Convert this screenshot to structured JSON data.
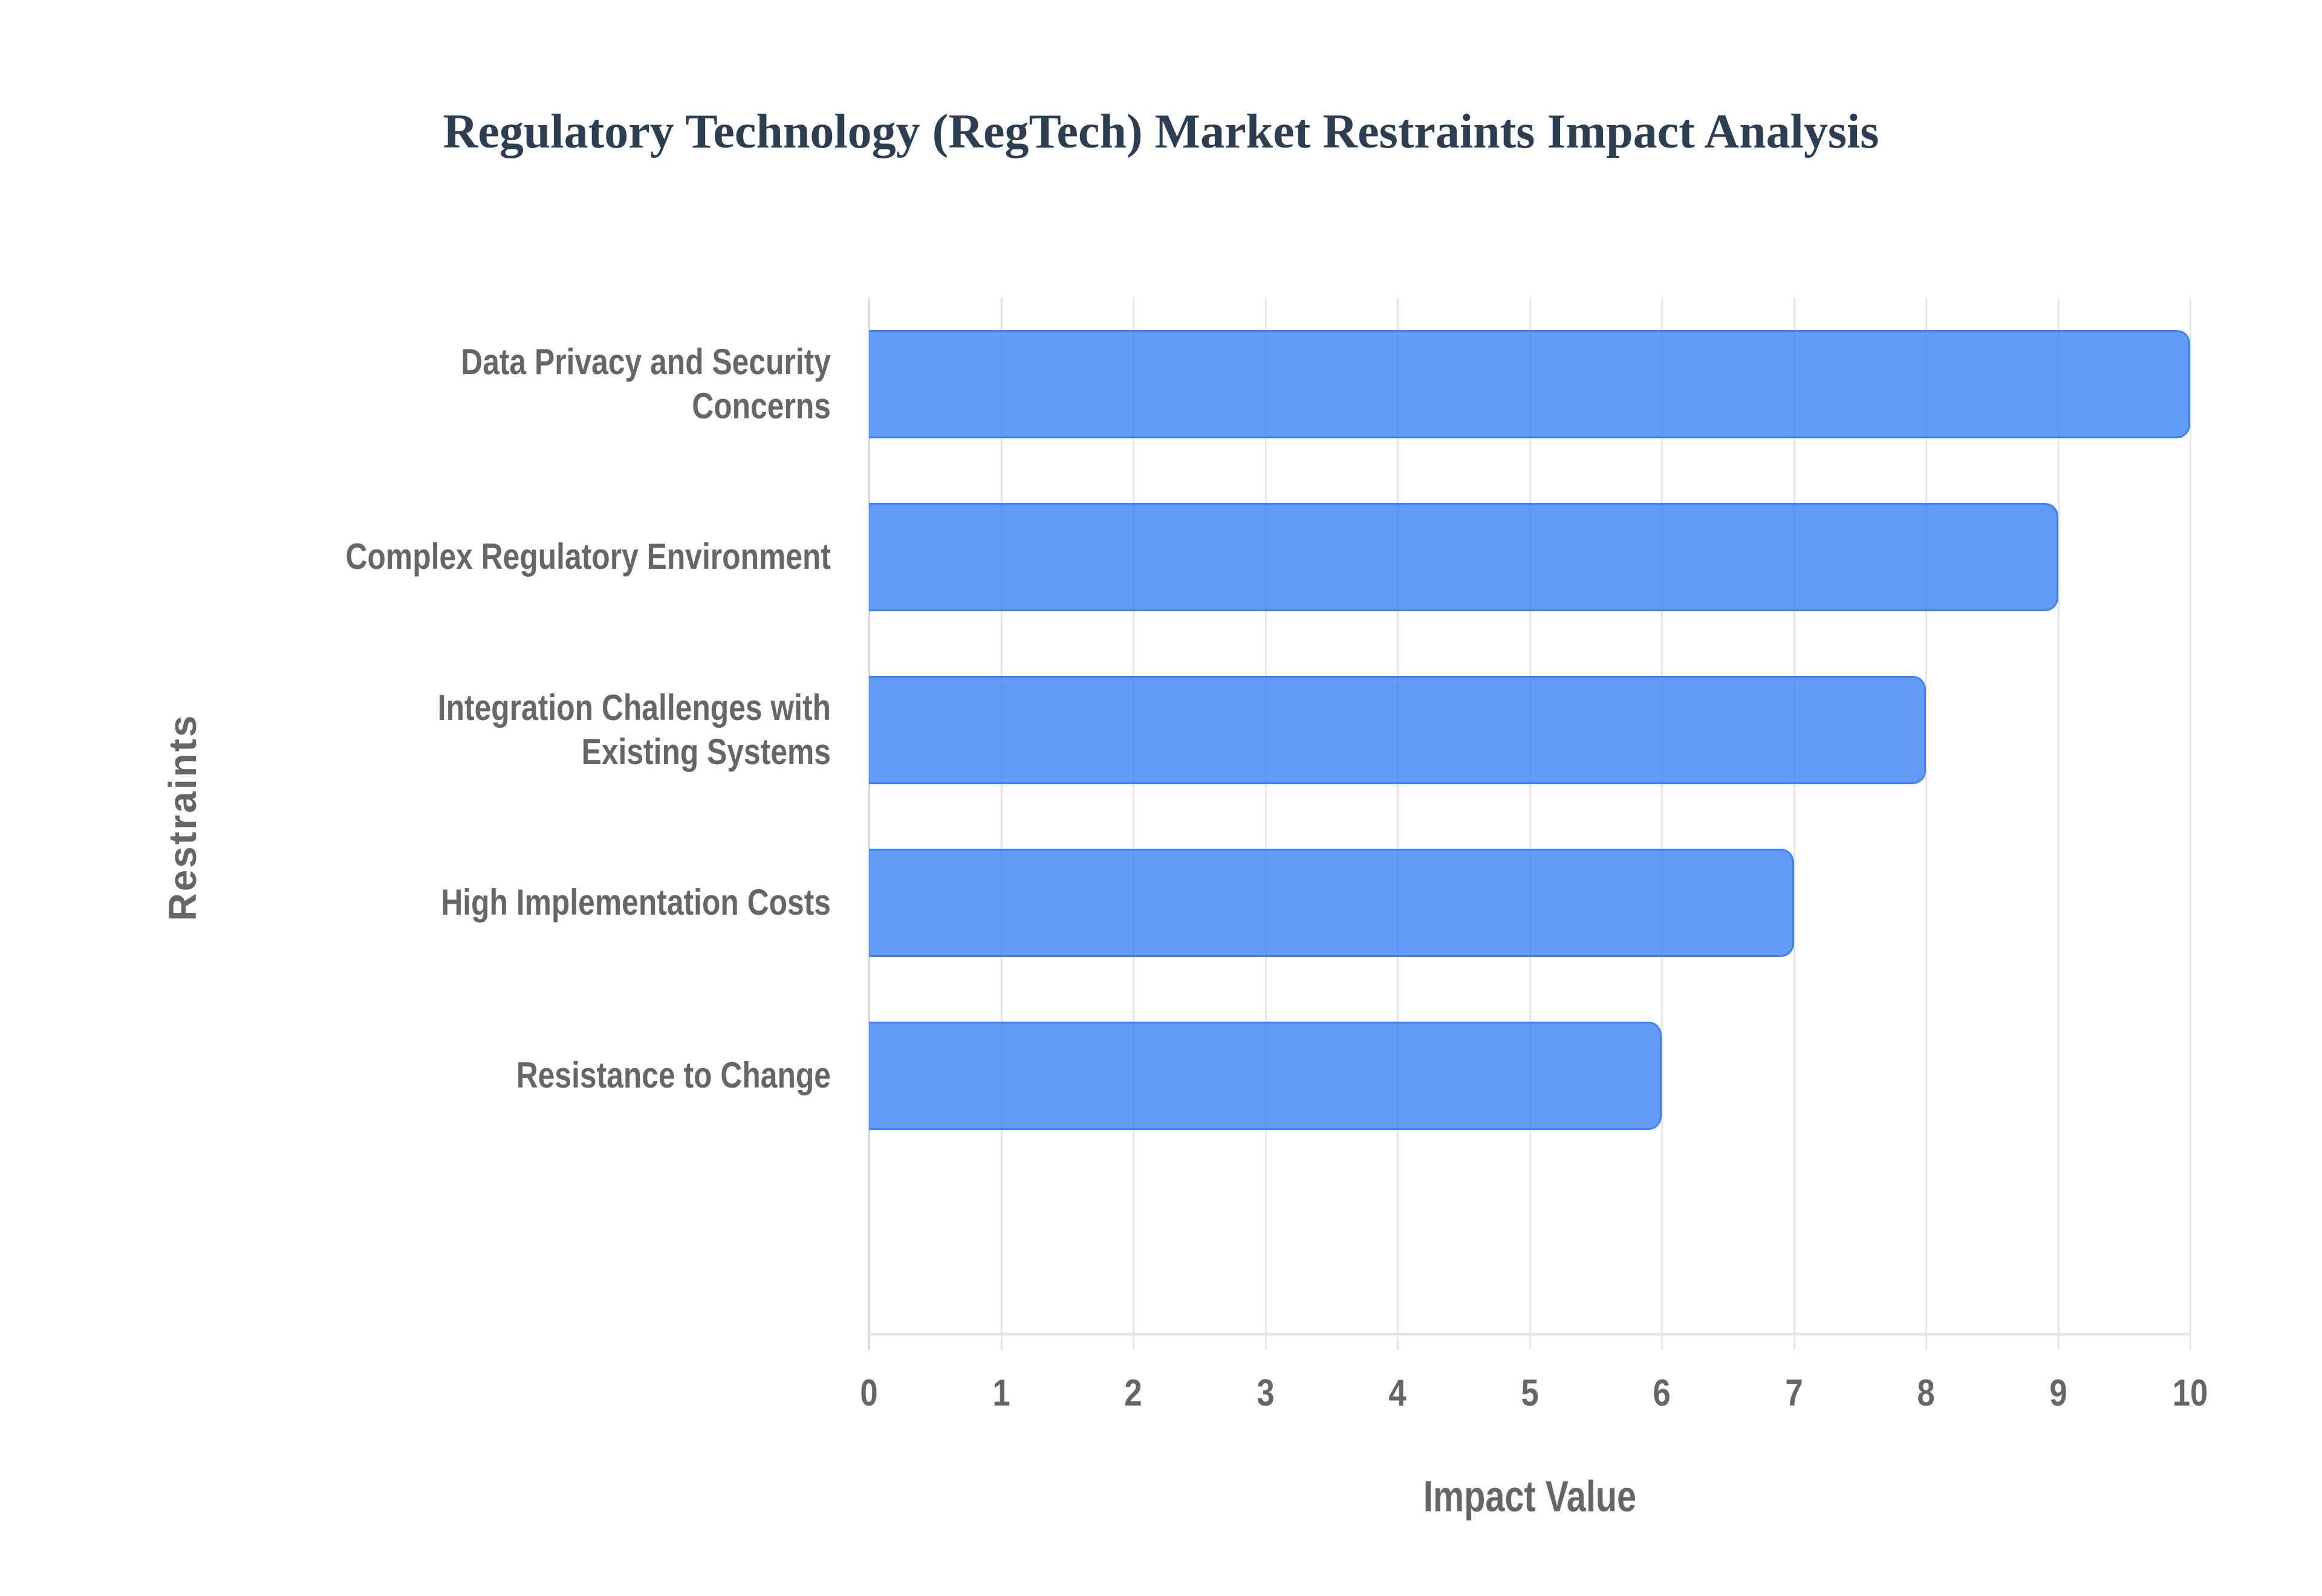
{
  "chart_data": {
    "type": "bar",
    "orientation": "horizontal",
    "title": "Regulatory Technology (RegTech) Market Restraints Impact Analysis",
    "xlabel": "Impact Value",
    "ylabel": "Restraints",
    "categories": [
      "Data Privacy and Security Concerns",
      "Complex Regulatory Environment",
      "Integration Challenges with Existing Systems",
      "High Implementation Costs",
      "Resistance to Change"
    ],
    "category_label_lines": [
      [
        "Data Privacy and Security",
        "Concerns"
      ],
      [
        "Complex Regulatory Environment"
      ],
      [
        "Integration Challenges with",
        "Existing Systems"
      ],
      [
        "High Implementation Costs"
      ],
      [
        "Resistance to Change"
      ]
    ],
    "values": [
      10,
      9,
      8,
      7,
      6
    ],
    "xlim": [
      0,
      10
    ],
    "xticks": [
      "0",
      "1",
      "2",
      "3",
      "4",
      "5",
      "6",
      "7",
      "8",
      "9",
      "10"
    ],
    "grid": {
      "x": true,
      "y": false
    },
    "legend": "none",
    "colors": {
      "bar_fill": "rgba(59, 130, 246, 0.8)",
      "bar_border": "#3b82f6",
      "title": "#2c3e50",
      "axis_text": "#666666",
      "grid": "#e6e6e6"
    }
  }
}
